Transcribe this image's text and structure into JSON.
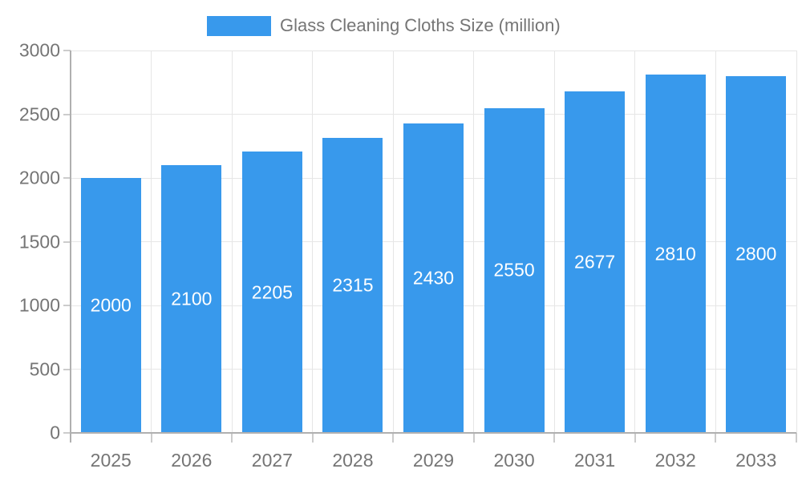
{
  "chart_data": {
    "type": "bar",
    "title": "",
    "categories": [
      "2025",
      "2026",
      "2027",
      "2028",
      "2029",
      "2030",
      "2031",
      "2032",
      "2033"
    ],
    "series": [
      {
        "name": "Glass Cleaning Cloths Size (million)",
        "values": [
          2000,
          2100,
          2205,
          2315,
          2430,
          2550,
          2677,
          2810,
          2800
        ]
      }
    ],
    "xlabel": "",
    "ylabel": "",
    "ylim": [
      0,
      3000
    ],
    "yticks": [
      0,
      500,
      1000,
      1500,
      2000,
      2500,
      3000
    ],
    "grid": true,
    "legend_position": "top-center",
    "data_labels_position": "inside-center"
  },
  "colors": {
    "bar": "#3899EC",
    "grid": "#e6e6e6",
    "axis": "#b0b0b0",
    "tick": "#cccccc",
    "text": "#757575",
    "bar_label": "#ffffff",
    "background": "#ffffff"
  }
}
